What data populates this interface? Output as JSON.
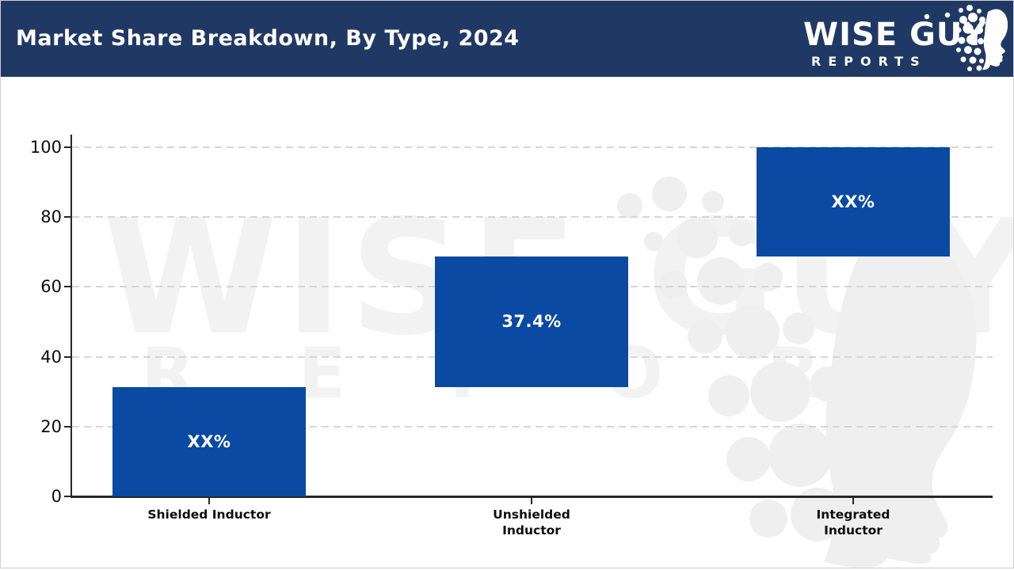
{
  "header": {
    "title": "Market Share Breakdown, By Type, 2024",
    "bg_color": "#203864",
    "brand": {
      "line1": "WISE GUY",
      "line2": "R E P O R T S"
    }
  },
  "watermark": {
    "line1": "WISE GUY",
    "line2": "R E P O R T S"
  },
  "chart_data": {
    "type": "bar",
    "subtype": "floating-stacked-percentage",
    "title": "Market Share Breakdown, By Type, 2024",
    "categories": [
      "Shielded Inductor",
      "Unshielded Inductor",
      "Integrated Inductor"
    ],
    "tick_label_lines": [
      [
        "Shielded Inductor"
      ],
      [
        "Unshielded",
        "Inductor"
      ],
      [
        "Integrated",
        "Inductor"
      ]
    ],
    "segments": [
      {
        "category": "Shielded Inductor",
        "label": "XX%",
        "start": 0,
        "end": 31.3,
        "value": 31.3
      },
      {
        "category": "Unshielded Inductor",
        "label": "37.4%",
        "start": 31.3,
        "end": 68.7,
        "value": 37.4
      },
      {
        "category": "Integrated Inductor",
        "label": "XX%",
        "start": 68.7,
        "end": 100,
        "value": 31.3
      }
    ],
    "xlabel": "",
    "ylabel": "",
    "ylim": [
      0,
      100
    ],
    "yticks": [
      0,
      20,
      40,
      60,
      80,
      100
    ],
    "grid": true,
    "grid_style": "dashed",
    "legend": "none",
    "bar_color": "#0b4aa2",
    "label_color": "#ffffff",
    "axis_color": "#262626"
  }
}
